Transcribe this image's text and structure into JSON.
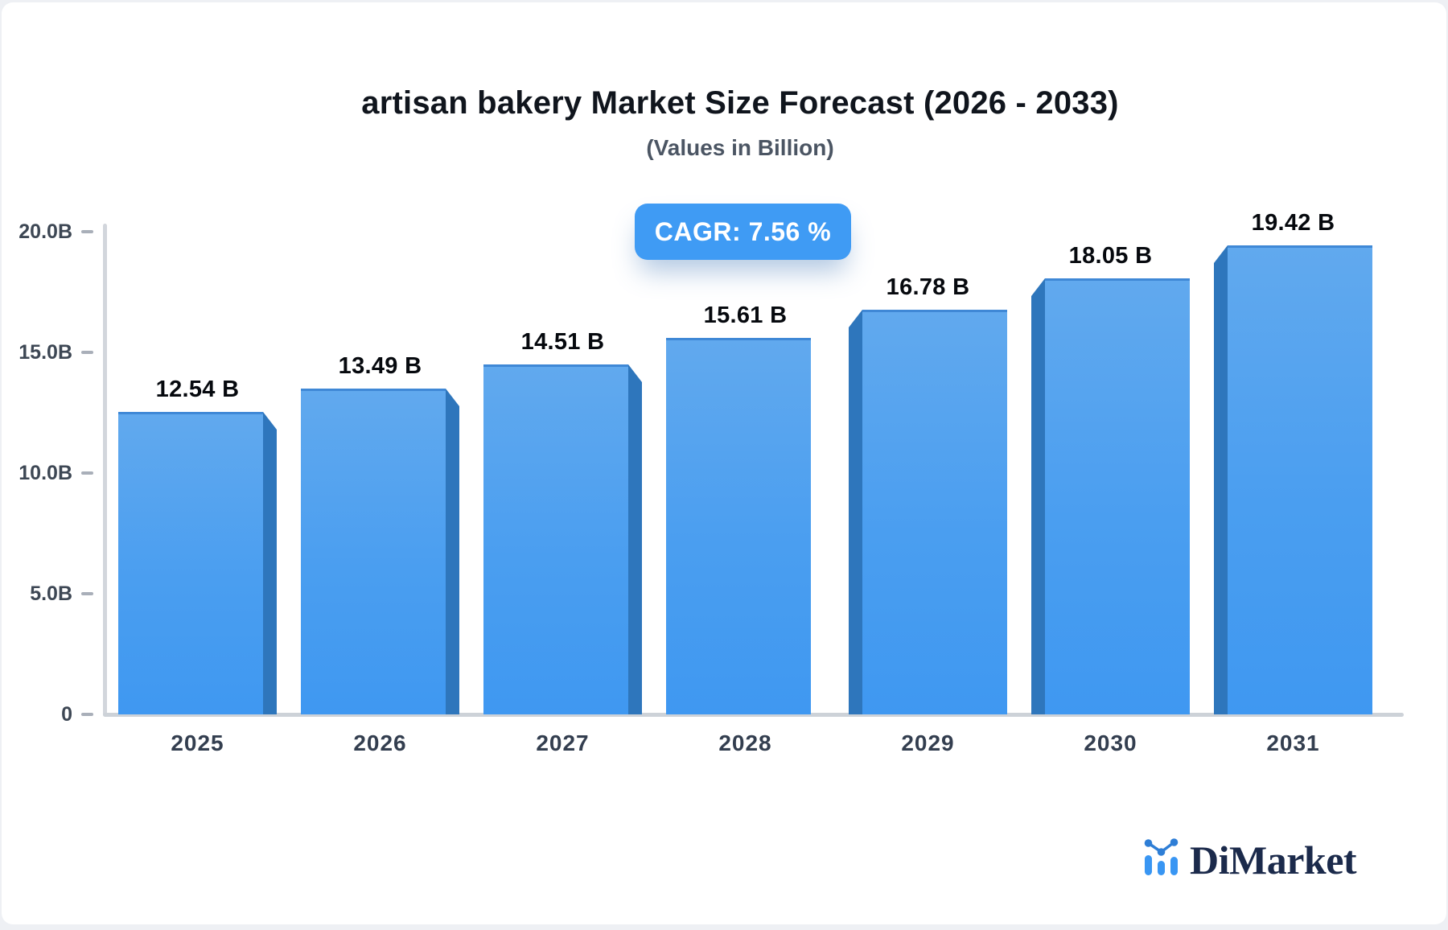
{
  "page": {
    "background": "#eef0f4",
    "card_color": "#ffffff"
  },
  "header": {
    "title": "artisan bakery Market Size Forecast (2026 - 2033)",
    "subtitle": "(Values in Billion)"
  },
  "cagr_badge": {
    "label": "CAGR: 7.56 %",
    "background": "#3f9bf4",
    "text_color": "#ffffff"
  },
  "chart_data": {
    "type": "bar",
    "title": "artisan bakery Market Size Forecast (2026 - 2033)",
    "subtitle": "(Values in Billion)",
    "categories": [
      "2025",
      "2026",
      "2027",
      "2028",
      "2029",
      "2030",
      "2031"
    ],
    "values": [
      12.54,
      13.49,
      14.51,
      15.61,
      16.78,
      18.05,
      19.42
    ],
    "bar_labels": [
      "12.54 B",
      "13.49 B",
      "14.51 B",
      "15.61 B",
      "16.78 B",
      "18.05 B",
      "19.42 B"
    ],
    "y_axis": {
      "range": [
        0,
        20
      ],
      "ticks": [
        {
          "value": 0,
          "label": "0"
        },
        {
          "value": 5,
          "label": "5.0B"
        },
        {
          "value": 10,
          "label": "10.0B"
        },
        {
          "value": 15,
          "label": "15.0B"
        },
        {
          "value": 20,
          "label": "20.0B"
        }
      ]
    },
    "annotations": [
      {
        "text": "CAGR: 7.56 %"
      }
    ],
    "grid": false,
    "legend": false,
    "colors": {
      "bar_face_top": "#61a9ee",
      "bar_face_bottom": "#3f98f1",
      "bar_side": "#2e76bc",
      "axis_line": "#cdd2d8",
      "tick_mark": "#a9afb9",
      "tick_text": "#3d4754",
      "category_text": "#333e4f",
      "value_text": "#06090e"
    }
  },
  "logo": {
    "text": "DiMarket",
    "icon": "bar-chart-trend-icon",
    "text_color": "#1b2a4b",
    "icon_bar_color": "#3996f3",
    "icon_dot_color": "#2e7ed6"
  }
}
